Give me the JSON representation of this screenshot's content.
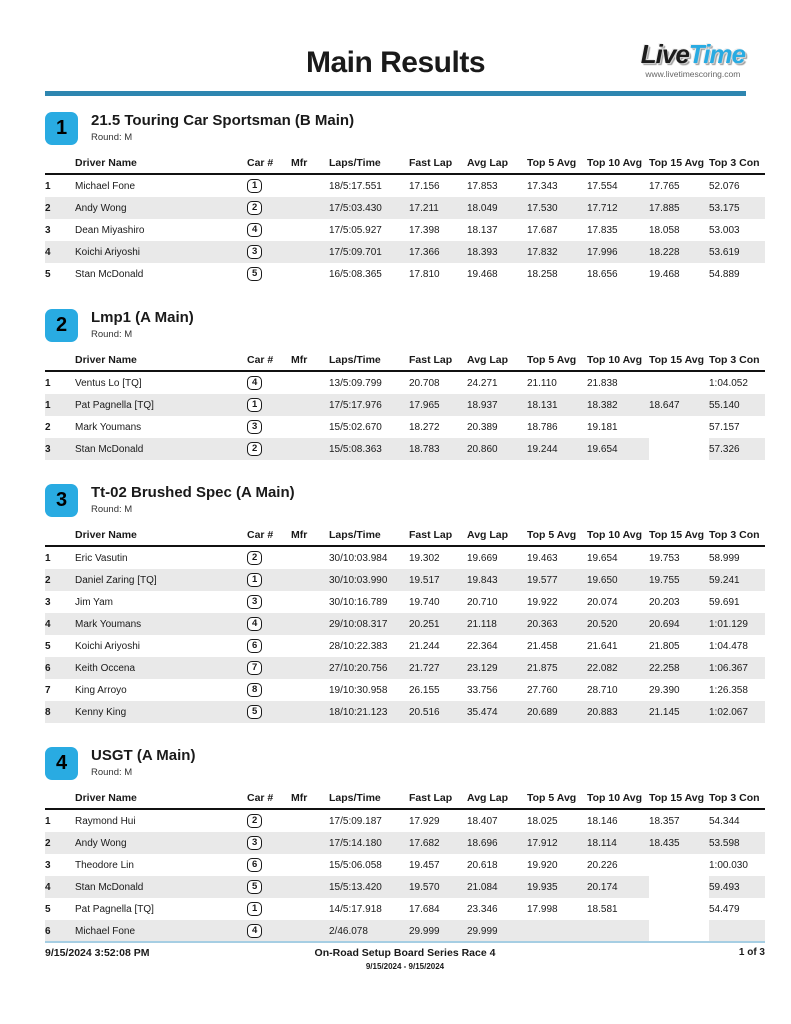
{
  "header": {
    "title": "Main Results",
    "logo_live": "Live",
    "logo_time": "Time",
    "logo_url": "www.livetimescoring.com"
  },
  "columns": [
    "Driver Name",
    "Car #",
    "Mfr",
    "Laps/Time",
    "Fast Lap",
    "Avg Lap",
    "Top 5 Avg",
    "Top 10 Avg",
    "Top 15 Avg",
    "Top 3 Con"
  ],
  "sections": [
    {
      "number": "1",
      "title": "21.5 Touring Car Sportsman (B Main)",
      "round": "Round: M",
      "rows": [
        [
          "1",
          "Michael Fone",
          "1",
          "",
          "18/5:17.551",
          "17.156",
          "17.853",
          "17.343",
          "17.554",
          "17.765",
          "52.076"
        ],
        [
          "2",
          "Andy Wong",
          "2",
          "",
          "17/5:03.430",
          "17.211",
          "18.049",
          "17.530",
          "17.712",
          "17.885",
          "53.175"
        ],
        [
          "3",
          "Dean Miyashiro",
          "4",
          "",
          "17/5:05.927",
          "17.398",
          "18.137",
          "17.687",
          "17.835",
          "18.058",
          "53.003"
        ],
        [
          "4",
          "Koichi Ariyoshi",
          "3",
          "",
          "17/5:09.701",
          "17.366",
          "18.393",
          "17.832",
          "17.996",
          "18.228",
          "53.619"
        ],
        [
          "5",
          "Stan McDonald",
          "5",
          "",
          "16/5:08.365",
          "17.810",
          "19.468",
          "18.258",
          "18.656",
          "19.468",
          "54.889"
        ]
      ]
    },
    {
      "number": "2",
      "title": "Lmp1 (A Main)",
      "round": "Round: M",
      "rows": [
        [
          "1",
          "Ventus Lo [TQ]",
          "4",
          "",
          "13/5:09.799",
          "20.708",
          "24.271",
          "21.110",
          "21.838",
          "",
          "1:04.052"
        ],
        [
          "1",
          "Pat Pagnella [TQ]",
          "1",
          "",
          "17/5:17.976",
          "17.965",
          "18.937",
          "18.131",
          "18.382",
          "18.647",
          "55.140"
        ],
        [
          "2",
          "Mark Youmans",
          "3",
          "",
          "15/5:02.670",
          "18.272",
          "20.389",
          "18.786",
          "19.181",
          "",
          "57.157"
        ],
        [
          "3",
          "Stan McDonald",
          "2",
          "",
          "15/5:08.363",
          "18.783",
          "20.860",
          "19.244",
          "19.654",
          "",
          "57.326"
        ]
      ]
    },
    {
      "number": "3",
      "title": "Tt-02 Brushed Spec (A Main)",
      "round": "Round: M",
      "rows": [
        [
          "1",
          "Eric Vasutin",
          "2",
          "",
          "30/10:03.984",
          "19.302",
          "19.669",
          "19.463",
          "19.654",
          "19.753",
          "58.999"
        ],
        [
          "2",
          "Daniel Zaring [TQ]",
          "1",
          "",
          "30/10:03.990",
          "19.517",
          "19.843",
          "19.577",
          "19.650",
          "19.755",
          "59.241"
        ],
        [
          "3",
          "Jim Yam",
          "3",
          "",
          "30/10:16.789",
          "19.740",
          "20.710",
          "19.922",
          "20.074",
          "20.203",
          "59.691"
        ],
        [
          "4",
          "Mark Youmans",
          "4",
          "",
          "29/10:08.317",
          "20.251",
          "21.118",
          "20.363",
          "20.520",
          "20.694",
          "1:01.129"
        ],
        [
          "5",
          "Koichi Ariyoshi",
          "6",
          "",
          "28/10:22.383",
          "21.244",
          "22.364",
          "21.458",
          "21.641",
          "21.805",
          "1:04.478"
        ],
        [
          "6",
          "Keith  Occena",
          "7",
          "",
          "27/10:20.756",
          "21.727",
          "23.129",
          "21.875",
          "22.082",
          "22.258",
          "1:06.367"
        ],
        [
          "7",
          "King Arroyo",
          "8",
          "",
          "19/10:30.958",
          "26.155",
          "33.756",
          "27.760",
          "28.710",
          "29.390",
          "1:26.358"
        ],
        [
          "8",
          "Kenny King",
          "5",
          "",
          "18/10:21.123",
          "20.516",
          "35.474",
          "20.689",
          "20.883",
          "21.145",
          "1:02.067"
        ]
      ]
    },
    {
      "number": "4",
      "title": "USGT (A Main)",
      "round": "Round: M",
      "rows": [
        [
          "1",
          "Raymond Hui",
          "2",
          "",
          "17/5:09.187",
          "17.929",
          "18.407",
          "18.025",
          "18.146",
          "18.357",
          "54.344"
        ],
        [
          "2",
          "Andy Wong",
          "3",
          "",
          "17/5:14.180",
          "17.682",
          "18.696",
          "17.912",
          "18.114",
          "18.435",
          "53.598"
        ],
        [
          "3",
          "Theodore Lin",
          "6",
          "",
          "15/5:06.058",
          "19.457",
          "20.618",
          "19.920",
          "20.226",
          "",
          "1:00.030"
        ],
        [
          "4",
          "Stan McDonald",
          "5",
          "",
          "15/5:13.420",
          "19.570",
          "21.084",
          "19.935",
          "20.174",
          "",
          "59.493"
        ],
        [
          "5",
          "Pat Pagnella [TQ]",
          "1",
          "",
          "14/5:17.918",
          "17.684",
          "23.346",
          "17.998",
          "18.581",
          "",
          "54.479"
        ],
        [
          "6",
          "Michael Fone",
          "4",
          "",
          "2/46.078",
          "29.999",
          "29.999",
          "",
          "",
          "",
          ""
        ]
      ]
    }
  ],
  "footer": {
    "timestamp": "9/15/2024 3:52:08 PM",
    "series": "On-Road Setup Board Series Race 4",
    "date_range": "9/15/2024 - 9/15/2024",
    "page": "1 of 3"
  },
  "colors": {
    "accent": "#29ABE2",
    "divider": "#2E86B0",
    "alt_row": "#E9E9E9",
    "footer_rule": "#A6CEE3"
  }
}
